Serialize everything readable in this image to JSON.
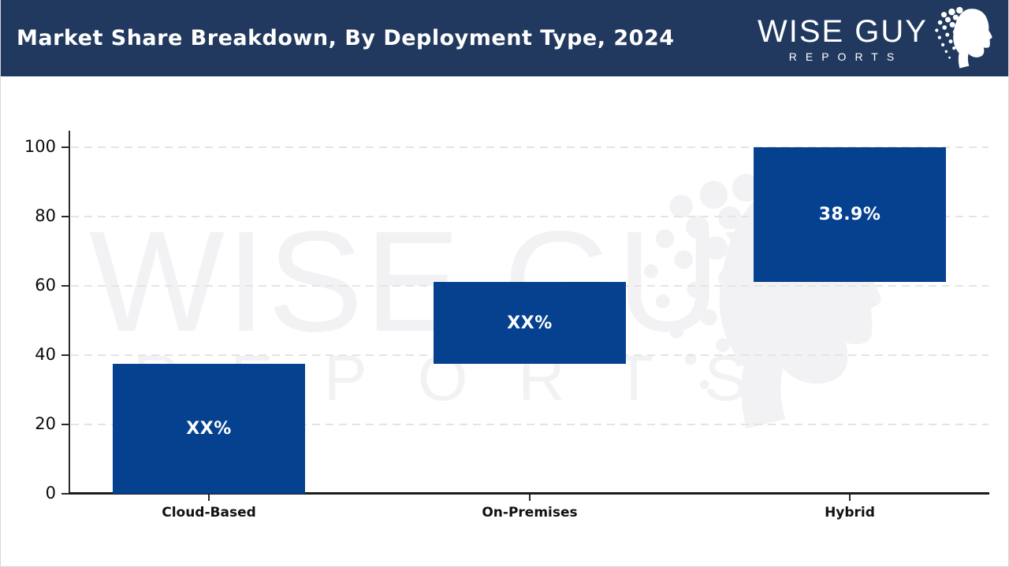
{
  "header": {
    "title": "Market Share Breakdown, By Deployment Type, 2024",
    "logo": {
      "line1": "WISE GUY",
      "line2": "REPORTS"
    }
  },
  "watermark": {
    "line1": "WISE GUY",
    "line2": "REPORTS"
  },
  "colors": {
    "header_bg": "#21395E",
    "bar": "#05418F",
    "bar_label": "#FFFFFF",
    "axis": "#1B1B1B",
    "grid": "#E4E4E4",
    "watermark": "#F2F2F4"
  },
  "chart_data": {
    "type": "bar",
    "subtype": "waterfall",
    "title": "Market Share Breakdown, By Deployment Type, 2024",
    "categories": [
      "Cloud-Based",
      "On-Premises",
      "Hybrid"
    ],
    "segments": [
      {
        "category": "Cloud-Based",
        "start": 0,
        "end": 37.5,
        "label": "XX%"
      },
      {
        "category": "On-Premises",
        "start": 37.5,
        "end": 61.1,
        "label": "XX%"
      },
      {
        "category": "Hybrid",
        "start": 61.1,
        "end": 100,
        "label": "38.9%"
      }
    ],
    "xlabel": "",
    "ylabel": "",
    "ylim": [
      0,
      100
    ],
    "yticks": [
      0,
      20,
      40,
      60,
      80,
      100
    ],
    "grid": true,
    "grid_style": "dashed horizontal",
    "legend": false,
    "bar_color": "#05418F"
  }
}
